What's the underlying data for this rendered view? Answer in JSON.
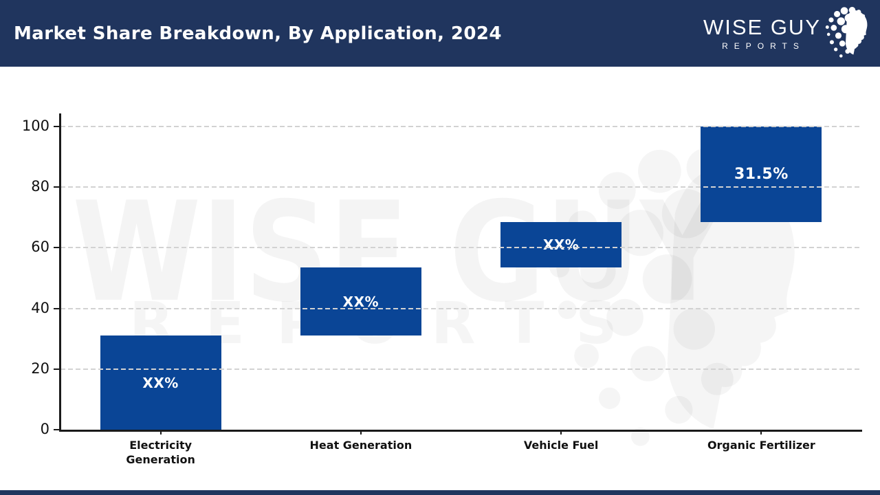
{
  "header": {
    "title": "Market Share Breakdown, By Application, 2024",
    "logo": {
      "brand": "WISE GUY",
      "sub": "REPORTS"
    }
  },
  "watermark": {
    "brand": "WISE GUY",
    "sub": "REPORTS"
  },
  "chart_data": {
    "type": "bar",
    "subtype": "waterfall",
    "title": "Market Share Breakdown, By Application, 2024",
    "categories": [
      "Electricity Generation",
      "Heat Generation",
      "Vehicle Fuel",
      "Organic Fertilizer"
    ],
    "tick_labels": [
      "Electricity\nGeneration",
      "Heat Generation",
      "Vehicle Fuel",
      "Organic Fertilizer"
    ],
    "segments": [
      {
        "category": "Electricity Generation",
        "start": 0,
        "end": 31,
        "value": 31,
        "label": "XX%"
      },
      {
        "category": "Heat Generation",
        "start": 31,
        "end": 53.5,
        "value": 22.5,
        "label": "XX%"
      },
      {
        "category": "Vehicle Fuel",
        "start": 53.5,
        "end": 68.5,
        "value": 15,
        "label": "XX%"
      },
      {
        "category": "Organic Fertilizer",
        "start": 68.5,
        "end": 100,
        "value": 31.5,
        "label": "31.5%"
      }
    ],
    "xlabel": "",
    "ylabel": "",
    "ylim": [
      0,
      100
    ],
    "yticks": [
      0,
      20,
      40,
      60,
      80,
      100
    ],
    "grid": "dashed horizontal, drawn over bars",
    "legend": "none",
    "bar_color": "#0A4596",
    "bar_label_color": "#ffffff"
  },
  "colors": {
    "header_bg": "#20355E",
    "bar": "#0A4596",
    "grid": "#d2d2d2",
    "axis": "#1a1a1a",
    "watermark": "rgba(0,0,0,0.045)"
  }
}
